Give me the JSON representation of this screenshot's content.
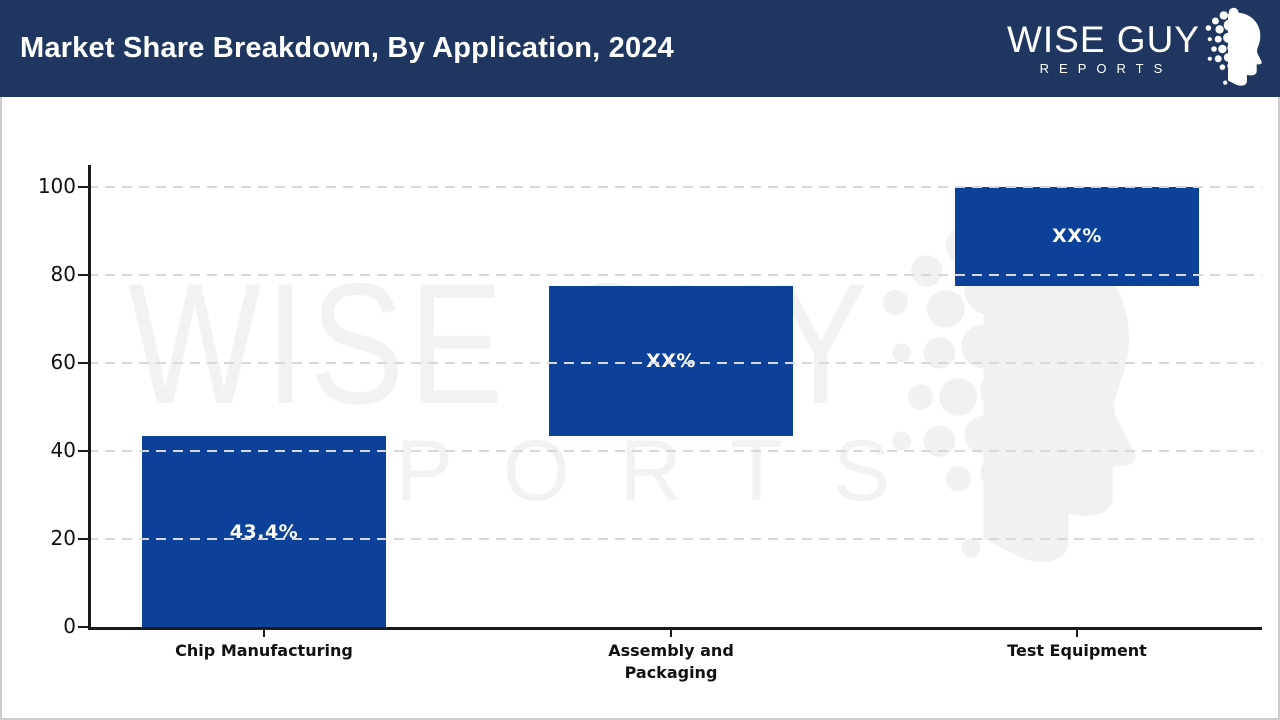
{
  "header": {
    "title": "Market Share Breakdown, By Application, 2024"
  },
  "logo": {
    "wordmark": "WISE GUY",
    "subtext": "REPORTS"
  },
  "watermark": {
    "wordmark": "WISE GUY",
    "subtext": "REPORTS"
  },
  "chart_data": {
    "type": "bar",
    "subtype": "stacked-floating-segments",
    "title": "Market Share Breakdown, By Application, 2024",
    "categories": [
      "Chip Manufacturing",
      "Assembly and\nPackaging",
      "Test Equipment"
    ],
    "segments": [
      {
        "category": "Chip Manufacturing",
        "start": 0,
        "end": 43.4,
        "label": "43.4%"
      },
      {
        "category": "Assembly and Packaging",
        "start": 43.4,
        "end": 77.6,
        "label": "XX%"
      },
      {
        "category": "Test Equipment",
        "start": 77.6,
        "end": 100,
        "label": "XX%"
      }
    ],
    "xlabel": "",
    "ylabel": "",
    "ylim": [
      0,
      100
    ],
    "yticks": [
      0,
      20,
      40,
      60,
      80,
      100
    ],
    "grid": "horizontal-dashed-over-bars",
    "legend": "none",
    "colors": {
      "bar": "#0b4199",
      "bar_label": "#ffffff",
      "grid": "#d8d8d8",
      "axis": "#1a1a1a",
      "header_bg": "#1f3760",
      "watermark": "#f2f2f2"
    }
  }
}
